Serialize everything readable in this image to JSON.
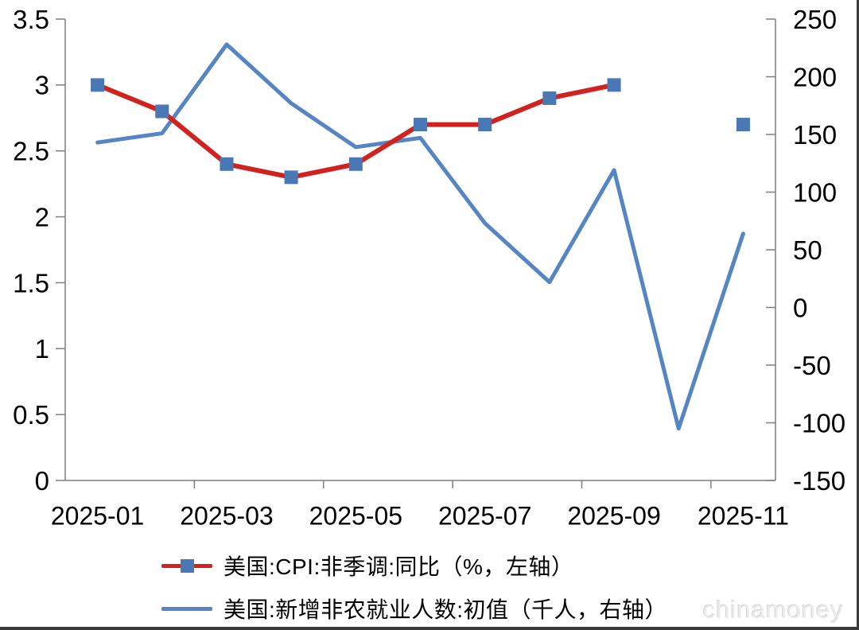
{
  "chart_data": {
    "type": "line",
    "title": "",
    "categories": [
      "2025-01",
      "2025-02",
      "2025-03",
      "2025-04",
      "2025-05",
      "2025-06",
      "2025-07",
      "2025-08",
      "2025-09",
      "2025-10",
      "2025-11"
    ],
    "x_tick_labels": [
      "2025-01",
      "2025-03",
      "2025-05",
      "2025-07",
      "2025-09",
      "2025-11"
    ],
    "series": [
      {
        "name": "美国:CPI:非季调:同比（%，左轴）",
        "axis": "left",
        "color": "#d0221f",
        "marker": "square",
        "marker_color": "#4a78b5",
        "values": [
          3.0,
          2.8,
          2.4,
          2.3,
          2.4,
          2.7,
          2.7,
          2.9,
          3.0,
          null,
          2.7
        ]
      },
      {
        "name": "美国:新增非农就业人数:初值（千人，右轴）",
        "axis": "right",
        "color": "#5585c2",
        "marker": "none",
        "values": [
          143,
          151,
          228,
          177,
          139,
          147,
          73,
          22,
          119,
          -105,
          64
        ]
      }
    ],
    "left_axis": {
      "min": 0,
      "max": 3.5,
      "tick_labels": [
        "3.5",
        "3",
        "2.5",
        "2",
        "1.5",
        "1",
        "0.5",
        "0"
      ]
    },
    "right_axis": {
      "min": -150,
      "max": 250,
      "tick_labels": [
        "250",
        "200",
        "150",
        "100",
        "50",
        "0",
        "-50",
        "-100",
        "-150"
      ]
    },
    "legend_position": "bottom",
    "grid": false
  },
  "legend": {
    "cpi_label": "美国:CPI:非季调:同比（%，左轴）",
    "nfp_label": "美国:新增非农就业人数:初值（千人，右轴）"
  },
  "watermark": "chinamoney",
  "colors": {
    "cpi_red": "#d0221f",
    "nfp_blue": "#5585c2",
    "marker_blue": "#4a78b5",
    "axis_gray": "#7f7f7f"
  }
}
